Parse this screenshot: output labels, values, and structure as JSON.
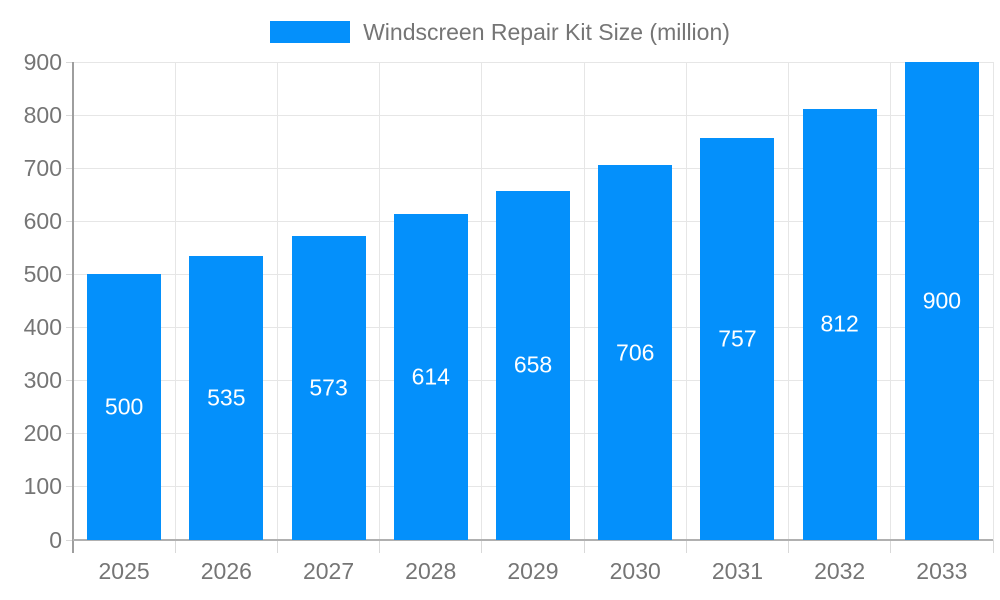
{
  "chart_data": {
    "type": "bar",
    "title": "Windscreen Repair Kit Size (million)",
    "categories": [
      "2025",
      "2026",
      "2027",
      "2028",
      "2029",
      "2030",
      "2031",
      "2032",
      "2033"
    ],
    "values": [
      500,
      535,
      573,
      614,
      658,
      706,
      757,
      812,
      900
    ],
    "xlabel": "",
    "ylabel": "",
    "ylim": [
      0,
      900
    ],
    "yticks": [
      0,
      100,
      200,
      300,
      400,
      500,
      600,
      700,
      800,
      900
    ],
    "grid": true,
    "legend_position": "top",
    "value_label_position": "inside-center"
  },
  "legend": {
    "label": "Windscreen Repair Kit Size (million)"
  },
  "colors": {
    "bar": "#0490fb",
    "bar_value_text": "#ffffff",
    "axis_text": "#757575",
    "legend_text": "#757575",
    "gridline": "#e6e6e6",
    "axis_line": "#9e9e9e",
    "background": "#ffffff"
  }
}
